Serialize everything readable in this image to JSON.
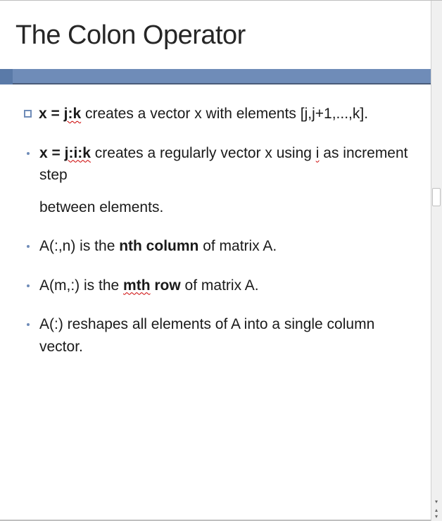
{
  "slide": {
    "title": "The Colon Operator",
    "accent_color": "#6f8cb8",
    "background_color": "#ffffff",
    "text_color": "#1a1a1a",
    "bullets": [
      {
        "marker": "square",
        "parts": {
          "b1": "x = ",
          "b1_code": "j:k",
          "b1_rest": " creates a vector x with elements [j,j+1,...,k]."
        }
      },
      {
        "marker": "dot",
        "parts": {
          "b2": "x = ",
          "b2_code": "j:i:k",
          "b2_rest": " creates a regularly vector x using ",
          "b2_i": "i",
          "b2_rest2": " as increment step",
          "b2_line2": "between elements."
        }
      },
      {
        "marker": "dot",
        "parts": {
          "b3a": "A(:,n) is the ",
          "b3b": "nth column",
          "b3c": " of matrix A."
        }
      },
      {
        "marker": "dot",
        "parts": {
          "b4a": "A(m,:) is the ",
          "b4b_u": "mth",
          "b4b_sp": " ",
          "b4b_r": "row",
          "b4c": " of matrix A."
        }
      },
      {
        "marker": "dot",
        "parts": {
          "b5": "A(:) reshapes all elements of A into a single column vector."
        }
      }
    ]
  }
}
